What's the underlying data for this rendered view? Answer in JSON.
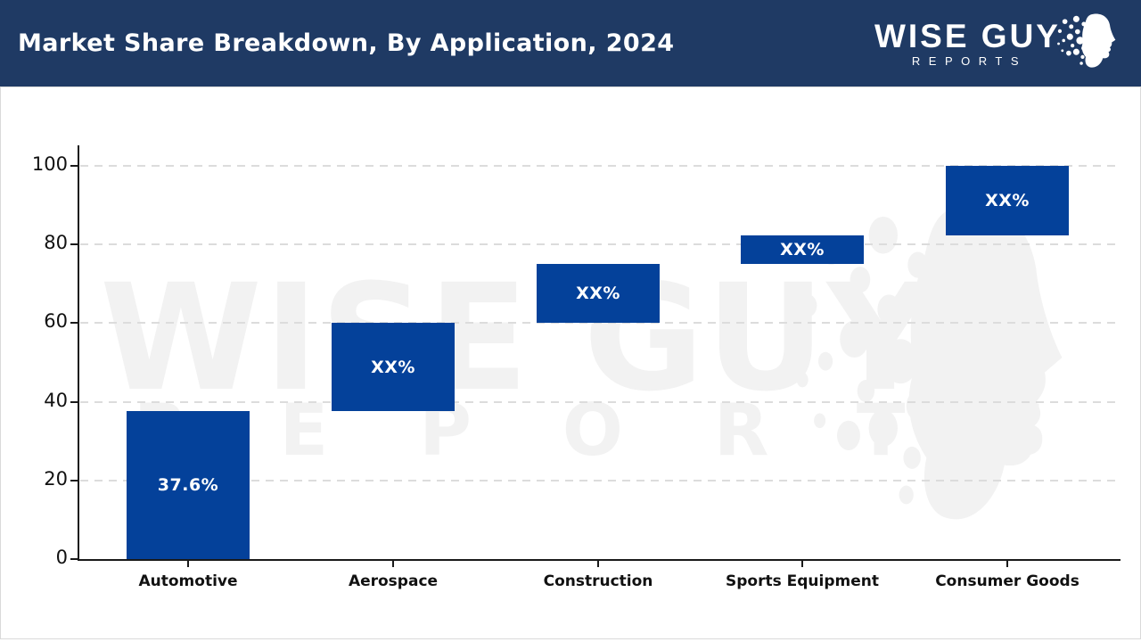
{
  "header": {
    "title": "Market Share Breakdown, By Application, 2024"
  },
  "logo": {
    "line1": "WISE GUY",
    "line2": "REPORTS",
    "head_icon": "dotted-head-profile"
  },
  "watermark": {
    "line1": "WISE GUY",
    "line2": "REPORTS",
    "head_icon": "dotted-head-profile"
  },
  "colors": {
    "header_bg": "#1f3a64",
    "bar": "#04419a",
    "bar_label": "#ffffff",
    "gridline": "#dcdcdc",
    "axis": "#1a1a1a",
    "watermark": "#f2f2f2"
  },
  "chart_data": {
    "type": "bar",
    "variant": "waterfall",
    "title": "Market Share Breakdown, By Application, 2024",
    "categories": [
      "Automotive",
      "Aerospace",
      "Construction",
      "Sports Equipment",
      "Consumer Goods"
    ],
    "segments": [
      {
        "category": "Automotive",
        "start": 0,
        "end": 37.6,
        "label": "37.6%"
      },
      {
        "category": "Aerospace",
        "start": 37.6,
        "end": 60,
        "label": "XX%"
      },
      {
        "category": "Construction",
        "start": 60,
        "end": 75,
        "label": "XX%"
      },
      {
        "category": "Sports Equipment",
        "start": 75,
        "end": 82.4,
        "label": "XX%"
      },
      {
        "category": "Consumer Goods",
        "start": 82.4,
        "end": 100,
        "label": "XX%"
      }
    ],
    "yticks": [
      0,
      20,
      40,
      60,
      80,
      100
    ],
    "ylim": [
      0,
      105
    ],
    "xlabel": "",
    "ylabel": "",
    "grid": "horizontal-dashed",
    "legend": "none",
    "bar_color": "#04419a",
    "label_color": "#ffffff"
  }
}
